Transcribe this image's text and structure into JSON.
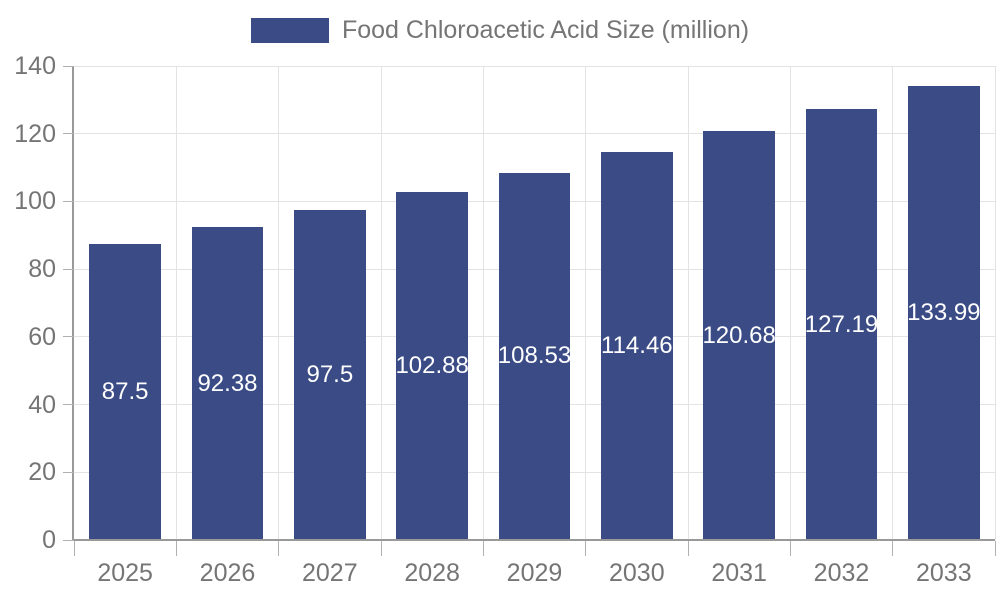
{
  "chart_data": {
    "type": "bar",
    "title": "Food Chloroacetic Acid Size (million)",
    "categories": [
      "2025",
      "2026",
      "2027",
      "2028",
      "2029",
      "2030",
      "2031",
      "2032",
      "2033"
    ],
    "series": [
      {
        "name": "Food Chloroacetic Acid Size (million)",
        "values": [
          87.5,
          92.38,
          97.5,
          102.88,
          108.53,
          114.46,
          120.68,
          127.19,
          133.99
        ],
        "labels": [
          "87.5",
          "92.38",
          "97.5",
          "102.88",
          "108.53",
          "114.46",
          "120.68",
          "127.19",
          "133.99"
        ]
      }
    ],
    "xlabel": "",
    "ylabel": "",
    "ylim": [
      0,
      140
    ],
    "ytick_step": 20,
    "yticks": [
      0,
      20,
      40,
      60,
      80,
      100,
      120,
      140
    ],
    "grid": true,
    "legend_position": "top-center",
    "bar_width_fraction": 0.7,
    "colors": {
      "bar": "#3A4B85",
      "bar_label": "#FFFFFF",
      "axis_text": "#757575",
      "grid_line": "#E3E3E3",
      "axis_line": "#999999",
      "tick_line": "#B0B0B0"
    }
  }
}
